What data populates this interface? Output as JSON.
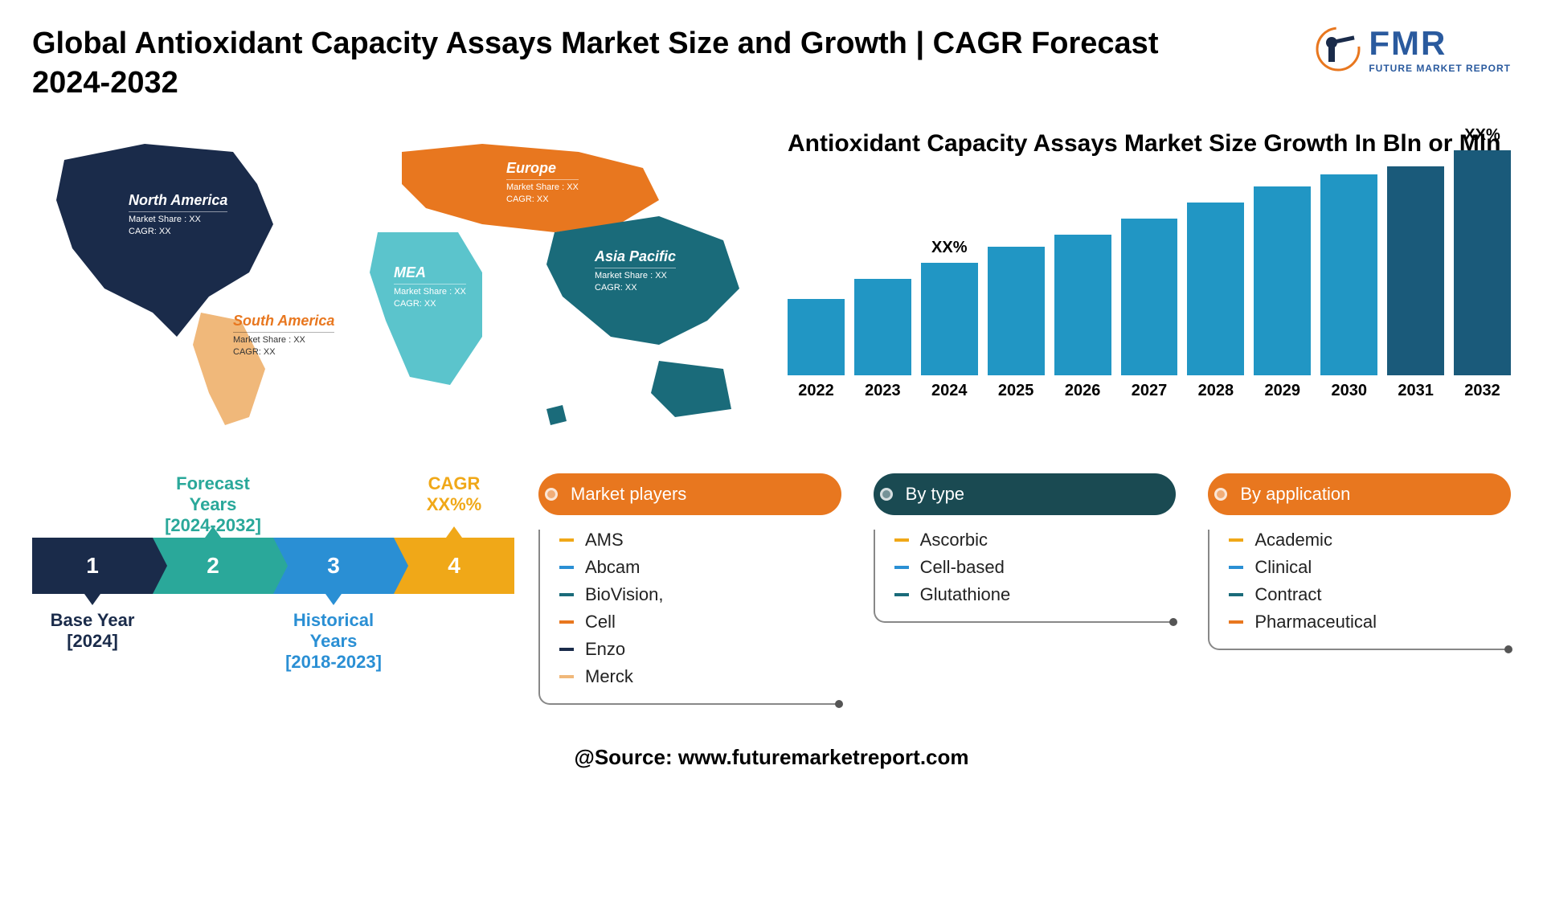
{
  "title": "Global Antioxidant Capacity Assays Market Size and Growth | CAGR Forecast 2024-2032",
  "logo": {
    "main": "FMR",
    "sub": "FUTURE MARKET REPORT",
    "icon_color": "#e8771f",
    "text_color": "#2a5a9e"
  },
  "map": {
    "regions": [
      {
        "name": "North America",
        "share": "Market Share : XX",
        "cagr": "CAGR: XX",
        "color": "#1a2b4a"
      },
      {
        "name": "South America",
        "share": "Market Share : XX",
        "cagr": "CAGR: XX",
        "color": "#f0b87a"
      },
      {
        "name": "Europe",
        "share": "Market Share : XX",
        "cagr": "CAGR: XX",
        "color": "#e8771f"
      },
      {
        "name": "MEA",
        "share": "Market Share : XX",
        "cagr": "CAGR: XX",
        "color": "#5bc4cc"
      },
      {
        "name": "Asia Pacific",
        "share": "Market Share : XX",
        "cagr": "CAGR: XX",
        "color": "#1a6b7a"
      }
    ]
  },
  "chart": {
    "title": "Antioxidant Capacity Assays Market Size Growth In Bln or Mln",
    "type": "bar",
    "categories": [
      "2022",
      "2023",
      "2024",
      "2025",
      "2026",
      "2027",
      "2028",
      "2029",
      "2030",
      "2031",
      "2032"
    ],
    "values": [
      95,
      120,
      140,
      160,
      175,
      195,
      215,
      235,
      250,
      260,
      280
    ],
    "max_height": 280,
    "bar_color": "#2196c4",
    "bar_color_dark": "#1a5a7a",
    "dark_indices": [
      9,
      10
    ],
    "annotations": [
      {
        "index": 2,
        "text": "XX%"
      },
      {
        "index": 10,
        "text": "XX%"
      }
    ],
    "label_fontsize": 20
  },
  "timeline": {
    "segments": [
      {
        "num": "1",
        "color": "#1a2b4a"
      },
      {
        "num": "2",
        "color": "#2aa89a"
      },
      {
        "num": "3",
        "color": "#2a8fd4"
      },
      {
        "num": "4",
        "color": "#f0a818"
      }
    ],
    "top_labels": [
      {
        "index": 1,
        "text": "Forecast Years",
        "sub": "[2024-2032]",
        "color": "#2aa89a"
      },
      {
        "index": 3,
        "text": "CAGR",
        "sub": "XX%%",
        "color": "#f0a818"
      }
    ],
    "bottom_labels": [
      {
        "index": 0,
        "text": "Base Year",
        "sub": "[2024]",
        "color": "#1a2b4a"
      },
      {
        "index": 2,
        "text": "Historical Years",
        "sub": "[2018-2023]",
        "color": "#2a8fd4"
      }
    ]
  },
  "categories": [
    {
      "title": "Market players",
      "header_color": "#e8771f",
      "items": [
        {
          "label": "AMS",
          "tick": "#f0a818"
        },
        {
          "label": "Abcam",
          "tick": "#2a8fd4"
        },
        {
          "label": "BioVision,",
          "tick": "#1a6b7a"
        },
        {
          "label": "Cell",
          "tick": "#e8771f"
        },
        {
          "label": "Enzo",
          "tick": "#1a2b4a"
        },
        {
          "label": "Merck",
          "tick": "#f0b87a"
        }
      ]
    },
    {
      "title": "By type",
      "header_color": "#1a4a52",
      "items": [
        {
          "label": "Ascorbic",
          "tick": "#f0a818"
        },
        {
          "label": "Cell-based",
          "tick": "#2a8fd4"
        },
        {
          "label": "Glutathione",
          "tick": "#1a6b7a"
        }
      ]
    },
    {
      "title": "By application",
      "header_color": "#e8771f",
      "items": [
        {
          "label": "Academic",
          "tick": "#f0a818"
        },
        {
          "label": "Clinical",
          "tick": "#2a8fd4"
        },
        {
          "label": "Contract",
          "tick": "#1a6b7a"
        },
        {
          "label": "Pharmaceutical",
          "tick": "#e8771f"
        }
      ]
    }
  ],
  "source": "@Source: www.futuremarketreport.com"
}
